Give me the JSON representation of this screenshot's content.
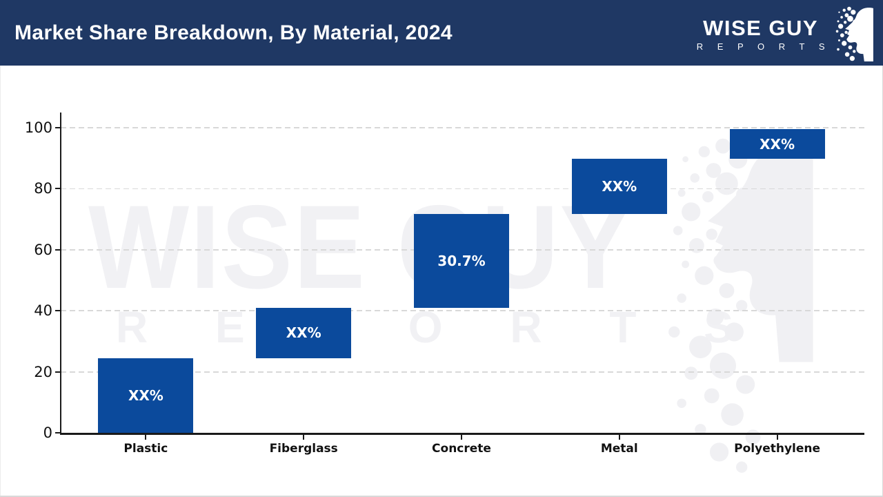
{
  "header": {
    "title": "Market Share Breakdown, By Material, 2024",
    "bg_color": "#1f3864",
    "logo": {
      "line1": "WISE GUY",
      "line2": "R E P O R T S",
      "face_icon": "dotted-face-profile"
    }
  },
  "watermark": {
    "line1": "WISE GUY",
    "line2": "R E P O R T S",
    "color": "#f1f1f4"
  },
  "chart_data": {
    "type": "bar",
    "subtype": "waterfall",
    "title": "Market Share Breakdown, By Material, 2024",
    "xlabel": "",
    "ylabel": "",
    "categories": [
      "Plastic",
      "Fiberglass",
      "Concrete",
      "Metal",
      "Polyethylene"
    ],
    "segments": [
      {
        "category": "Plastic",
        "start": 0,
        "end": 24.5,
        "label": "XX%"
      },
      {
        "category": "Fiberglass",
        "start": 24.5,
        "end": 41,
        "label": "XX%"
      },
      {
        "category": "Concrete",
        "start": 41,
        "end": 71.7,
        "label": "30.7%"
      },
      {
        "category": "Metal",
        "start": 71.7,
        "end": 89.8,
        "label": "XX%"
      },
      {
        "category": "Polyethylene",
        "start": 89.8,
        "end": 99.5,
        "label": "XX%"
      }
    ],
    "y_ticks": [
      0,
      20,
      40,
      60,
      80,
      100
    ],
    "ylim": [
      0,
      105
    ],
    "grid": "horizontal-dashed",
    "legend": "none",
    "bar_color": "#0b4a9c",
    "bar_label_color": "#ffffff",
    "axis_color": "#1a1a1a",
    "grid_color": "#d8d8d8"
  }
}
